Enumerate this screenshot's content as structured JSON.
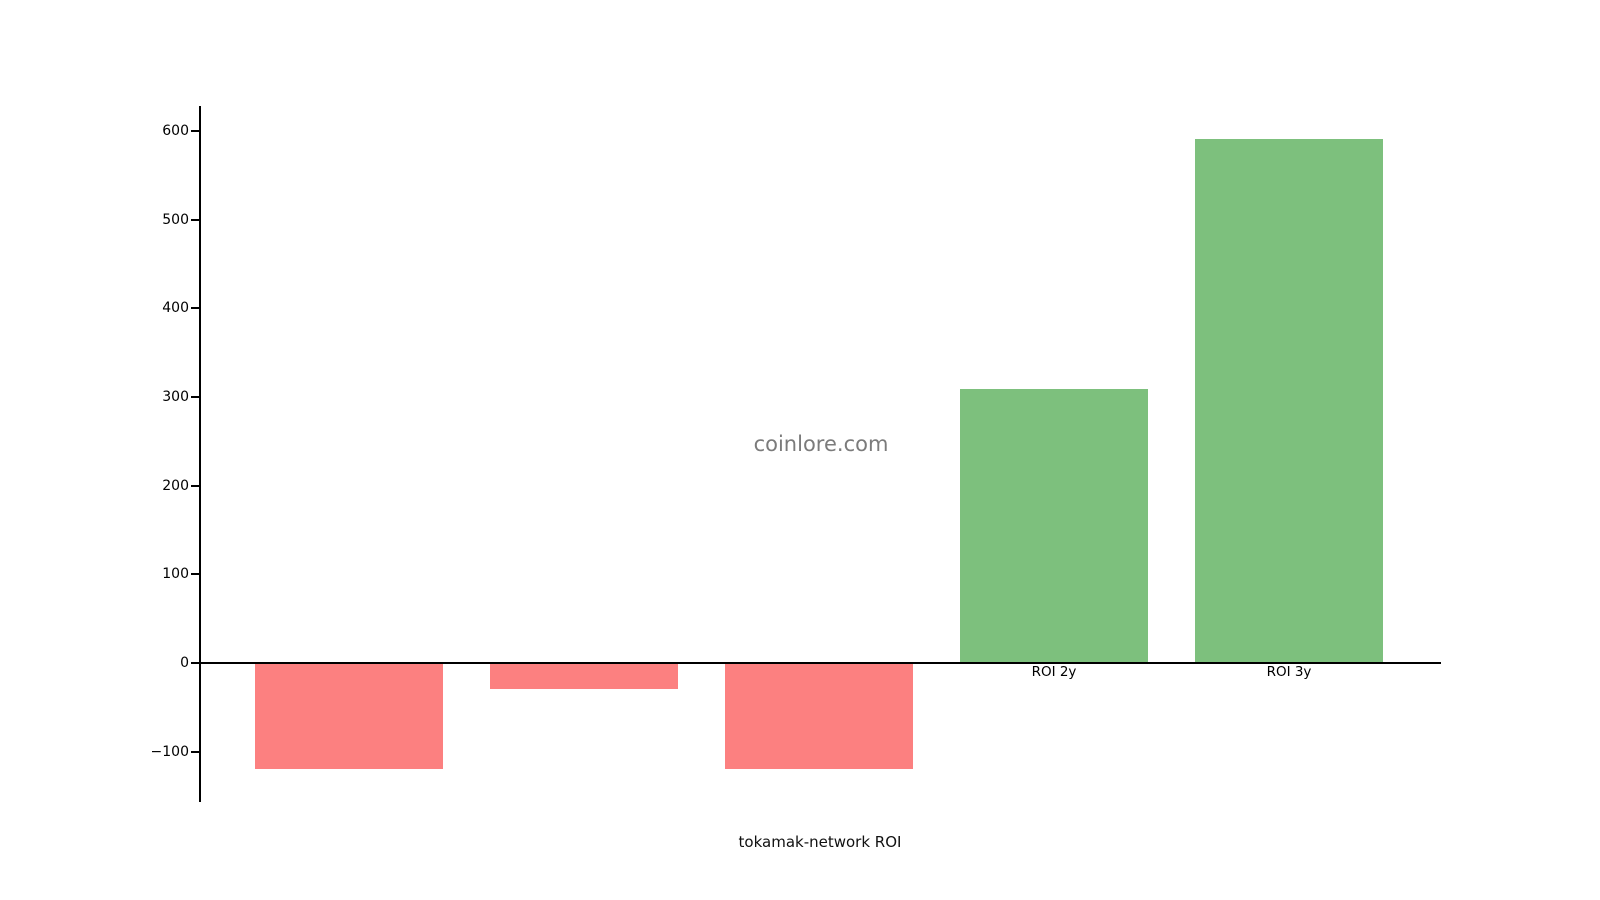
{
  "page": {
    "background": "#ffffff"
  },
  "chart_data": {
    "type": "bar",
    "title": "tokamak-network ROI",
    "watermark": "coinlore.com",
    "xlabel": "",
    "ylabel": "",
    "grid": false,
    "legend": null,
    "ylim": [
      -155,
      627
    ],
    "bars": [
      {
        "label": "",
        "value": -120,
        "color": "#fc8080"
      },
      {
        "label": "",
        "value": -29,
        "color": "#fc8080"
      },
      {
        "label": "",
        "value": -120,
        "color": "#fc8080"
      },
      {
        "label": "ROI 2y",
        "value": 309,
        "color": "#7dc07d"
      },
      {
        "label": "ROI 3y",
        "value": 591,
        "color": "#7dc07d"
      }
    ],
    "y_ticks": [
      {
        "value": 600,
        "label": "600"
      },
      {
        "value": 500,
        "label": "500"
      },
      {
        "value": 400,
        "label": "400"
      },
      {
        "value": 300,
        "label": "300"
      },
      {
        "value": 200,
        "label": "200"
      },
      {
        "value": 100,
        "label": "100"
      },
      {
        "value": 0,
        "label": "0"
      },
      {
        "value": -100,
        "label": "−100"
      }
    ],
    "colors": {
      "negative": "#fc8080",
      "positive": "#7dc07d",
      "axis": "#000000",
      "tick_label": "#000000",
      "watermark": "#7b7b7b",
      "title": "#111111"
    }
  }
}
